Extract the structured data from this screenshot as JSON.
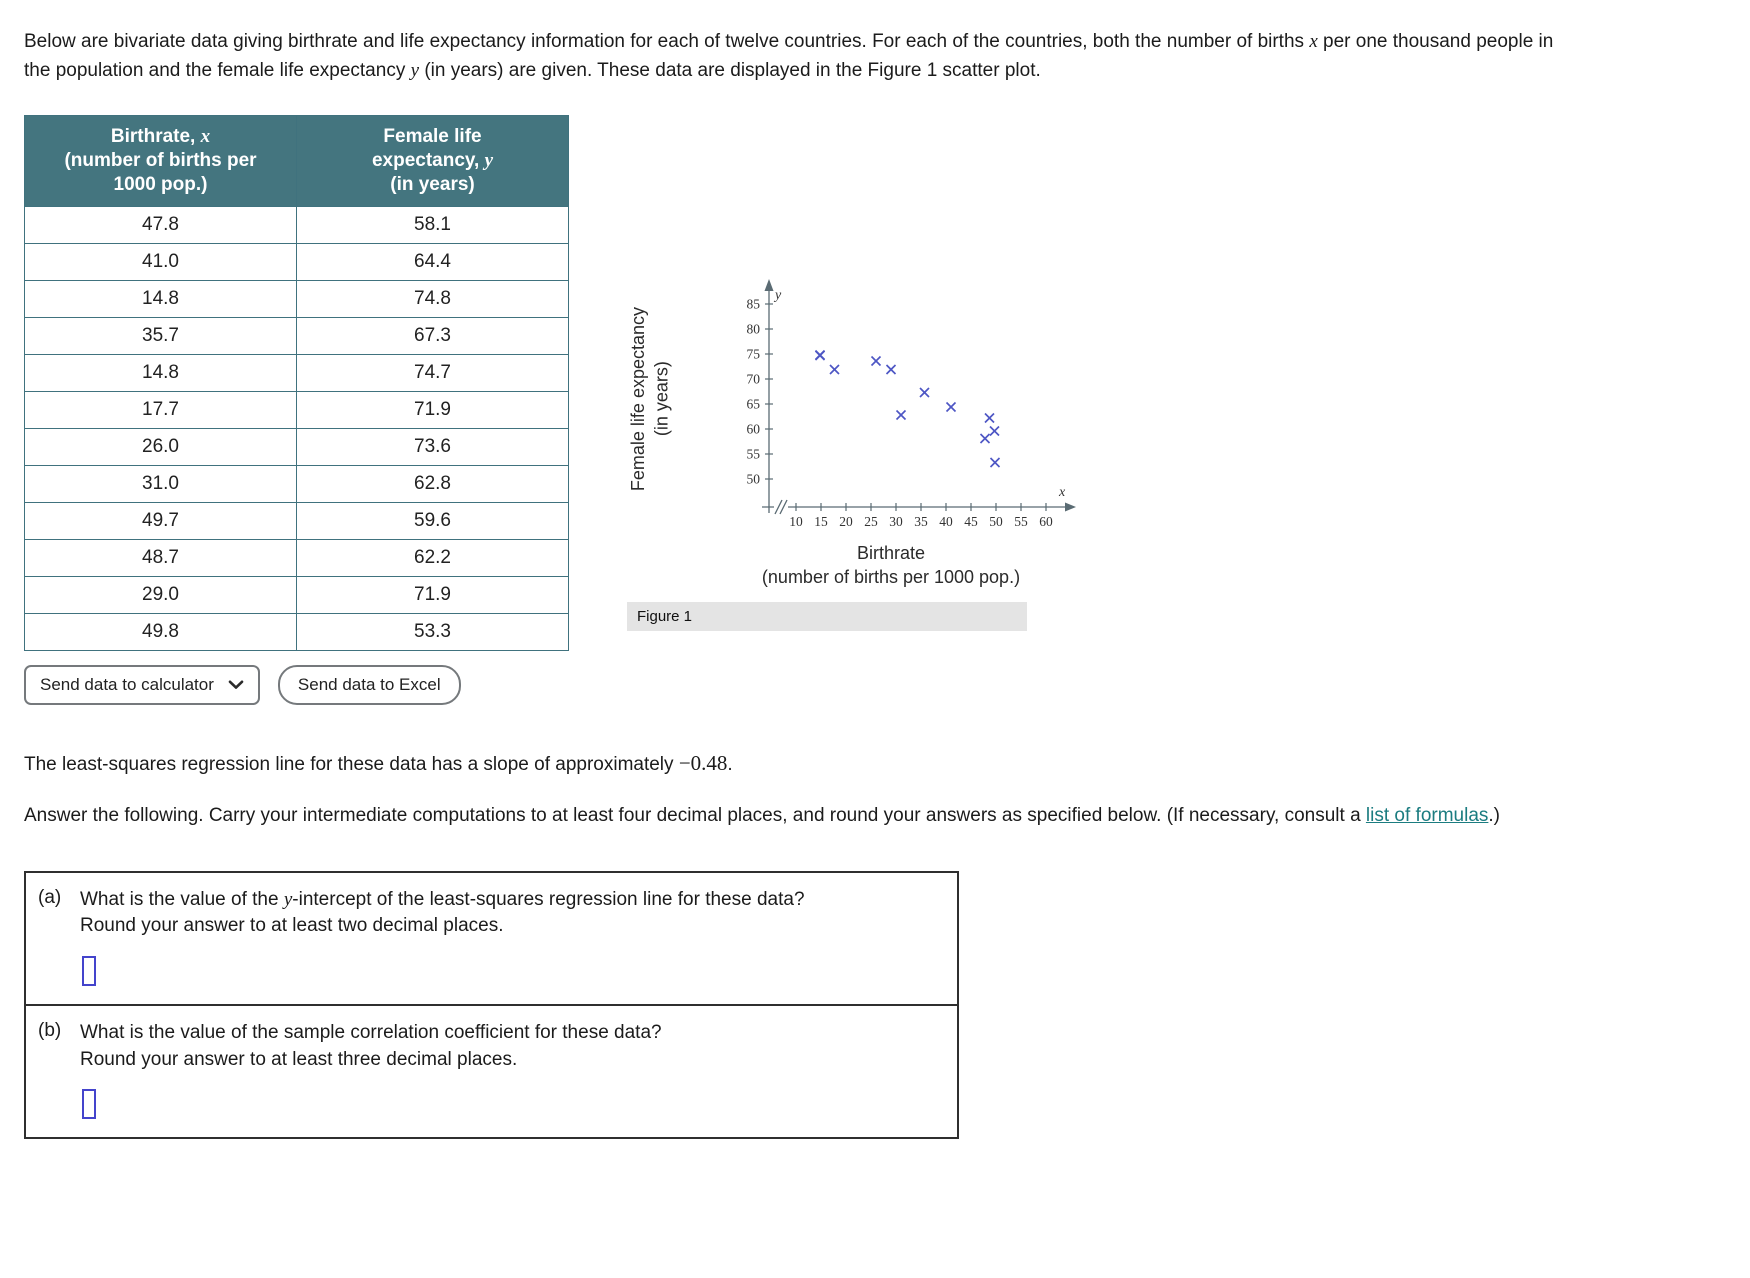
{
  "colors": {
    "table_header_bg": "#44757f",
    "table_border": "#40727e",
    "link": "#1b7c80",
    "caption_bg": "#e4e4e4"
  },
  "intro": {
    "part1": "Below are bivariate data giving birthrate and life expectancy information for each of twelve countries. For each of the countries, both the number of births ",
    "x_var": "x",
    "part2": " per one thousand people in the population and the female life expectancy ",
    "y_var": "y",
    "part3": " (in years) are given. These data are displayed in the Figure 1 scatter plot."
  },
  "table": {
    "col1": {
      "line1_pre": "Birthrate, ",
      "var": "x",
      "line2": "(number of births per",
      "line3": "1000 pop.)"
    },
    "col2": {
      "line1": "Female life",
      "line2_pre": "expectancy, ",
      "var": "y",
      "line3": "(in years)"
    },
    "rows": [
      [
        "47.8",
        "58.1"
      ],
      [
        "41.0",
        "64.4"
      ],
      [
        "14.8",
        "74.8"
      ],
      [
        "35.7",
        "67.3"
      ],
      [
        "14.8",
        "74.7"
      ],
      [
        "17.7",
        "71.9"
      ],
      [
        "26.0",
        "73.6"
      ],
      [
        "31.0",
        "62.8"
      ],
      [
        "49.7",
        "59.6"
      ],
      [
        "48.7",
        "62.2"
      ],
      [
        "29.0",
        "71.9"
      ],
      [
        "49.8",
        "53.3"
      ]
    ]
  },
  "buttons": {
    "calculator_label": "Send data to calculator",
    "excel_label": "Send data to Excel",
    "chevron_icon": "chevron-down"
  },
  "chart_data": {
    "type": "scatter",
    "x": [
      47.8,
      41.0,
      14.8,
      35.7,
      14.8,
      17.7,
      26.0,
      31.0,
      49.7,
      48.7,
      29.0,
      49.8
    ],
    "y": [
      58.1,
      64.4,
      74.8,
      67.3,
      74.7,
      71.9,
      73.6,
      62.8,
      59.6,
      62.2,
      71.9,
      53.3
    ],
    "xlim": [
      10,
      60
    ],
    "ylim": [
      50,
      85
    ],
    "xticks": [
      10,
      15,
      20,
      25,
      30,
      35,
      40,
      45,
      50,
      55,
      60
    ],
    "yticks": [
      50,
      55,
      60,
      65,
      70,
      75,
      80,
      85
    ],
    "x_axis_symbol": "x",
    "y_axis_symbol": "y",
    "xlabel_line1": "Birthrate",
    "xlabel_line2": "(number of births per 1000 pop.)",
    "ylabel_line1": "Female life expectancy",
    "ylabel_line2": "(in years)",
    "marker": "x",
    "marker_color": "#4d56c4",
    "grid": false,
    "legend": false,
    "figure_caption": "Figure 1"
  },
  "slope": {
    "part1": "The least-squares regression line for these data has a slope of approximately ",
    "value": "−0.48",
    "part2": "."
  },
  "instructions": {
    "part1": "Answer the following. Carry your intermediate computations to at least four decimal places, and round your answers as specified below. (If necessary, consult a ",
    "link_text": "list of formulas",
    "part2": ".)"
  },
  "questions": {
    "a": {
      "label": "(a)",
      "q_pre": "What is the value of the ",
      "var": "y",
      "q_post": "-intercept of the least-squares regression line for these data?",
      "round_text": "Round your answer to at least two decimal places."
    },
    "b": {
      "label": "(b)",
      "q_text": "What is the value of the sample correlation coefficient for these data?",
      "round_text": "Round your answer to at least three decimal places."
    }
  }
}
